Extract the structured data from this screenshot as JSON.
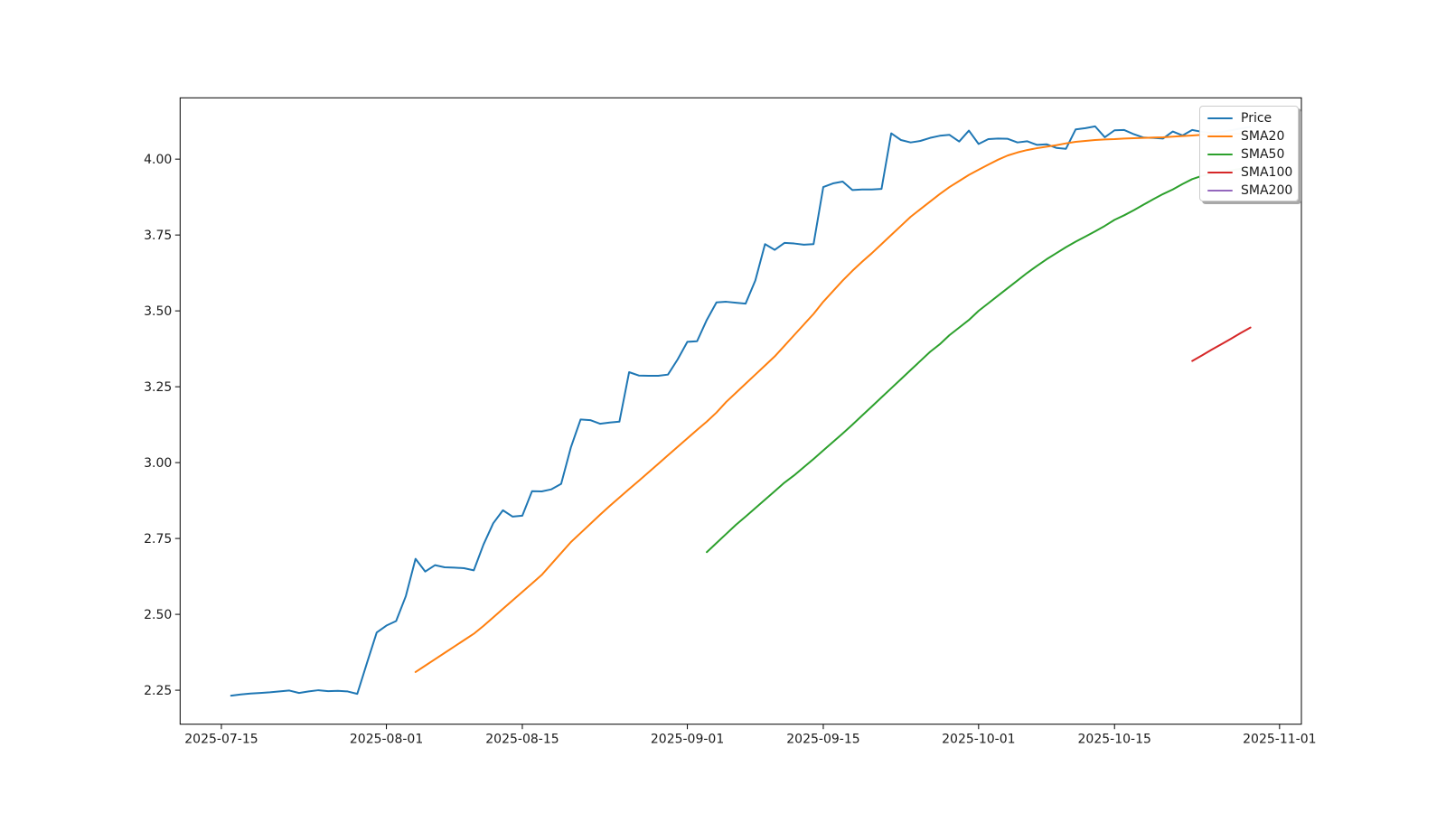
{
  "figure": {
    "background_color": "#ffffff"
  },
  "chart_data": {
    "type": "line",
    "title": "",
    "xlabel": "",
    "ylabel": "",
    "grid": false,
    "legend_position": "upper right",
    "start_date": "2025-07-16",
    "xlim_days_from_start": [
      -5.25,
      110.25
    ],
    "ylim": [
      2.138,
      4.202
    ],
    "x_tick_dates": [
      "2025-07-15",
      "2025-08-01",
      "2025-08-15",
      "2025-09-01",
      "2025-09-15",
      "2025-10-01",
      "2025-10-15",
      "2025-11-01"
    ],
    "y_ticks": [
      2.25,
      2.5,
      2.75,
      3.0,
      3.25,
      3.5,
      3.75,
      4.0
    ],
    "y_tick_labels": [
      "2.25",
      "2.50",
      "2.75",
      "3.00",
      "3.25",
      "3.50",
      "3.75",
      "4.00"
    ],
    "legend_entries": [
      {
        "label": "Price",
        "color": "#1f77b4"
      },
      {
        "label": "SMA20",
        "color": "#ff7f0e"
      },
      {
        "label": "SMA50",
        "color": "#2ca02c"
      },
      {
        "label": "SMA100",
        "color": "#d62728"
      },
      {
        "label": "SMA200",
        "color": "#9467bd"
      }
    ],
    "series": [
      {
        "name": "Price",
        "color": "#1f77b4",
        "start_day": 0,
        "values": [
          2.232,
          2.236,
          2.239,
          2.241,
          2.243,
          2.246,
          2.249,
          2.241,
          2.246,
          2.25,
          2.247,
          2.248,
          2.246,
          2.238,
          2.34,
          2.44,
          2.463,
          2.478,
          2.56,
          2.683,
          2.641,
          2.662,
          2.655,
          2.654,
          2.652,
          2.645,
          2.73,
          2.8,
          2.843,
          2.822,
          2.825,
          2.906,
          2.905,
          2.912,
          2.93,
          3.05,
          3.142,
          3.14,
          3.128,
          3.132,
          3.135,
          3.298,
          3.287,
          3.286,
          3.286,
          3.29,
          3.34,
          3.398,
          3.4,
          3.47,
          3.528,
          3.53,
          3.527,
          3.524,
          3.6,
          3.72,
          3.701,
          3.724,
          3.722,
          3.718,
          3.72,
          3.908,
          3.92,
          3.926,
          3.898,
          3.9,
          3.9,
          3.902,
          4.085,
          4.063,
          4.055,
          4.06,
          4.07,
          4.077,
          4.08,
          4.058,
          4.094,
          4.05,
          4.066,
          4.068,
          4.067,
          4.055,
          4.059,
          4.047,
          4.049,
          4.037,
          4.034,
          4.098,
          4.102,
          4.108,
          4.072,
          4.095,
          4.096,
          4.082,
          4.071,
          4.07,
          4.068,
          4.091,
          4.078,
          4.096,
          4.09,
          4.086,
          4.089,
          4.095,
          4.101,
          4.106
        ]
      },
      {
        "name": "SMA20",
        "color": "#ff7f0e",
        "start_day": 19,
        "values": [
          2.31,
          2.331,
          2.352,
          2.373,
          2.394,
          2.415,
          2.436,
          2.462,
          2.49,
          2.518,
          2.546,
          2.574,
          2.602,
          2.63,
          2.666,
          2.702,
          2.738,
          2.768,
          2.798,
          2.828,
          2.857,
          2.885,
          2.913,
          2.94,
          2.968,
          2.996,
          3.024,
          3.052,
          3.08,
          3.108,
          3.135,
          3.165,
          3.2,
          3.23,
          3.26,
          3.29,
          3.32,
          3.35,
          3.385,
          3.42,
          3.455,
          3.49,
          3.53,
          3.565,
          3.6,
          3.632,
          3.662,
          3.69,
          3.72,
          3.75,
          3.78,
          3.81,
          3.835,
          3.86,
          3.885,
          3.908,
          3.928,
          3.948,
          3.965,
          3.982,
          3.998,
          4.012,
          4.022,
          4.03,
          4.036,
          4.041,
          4.046,
          4.052,
          4.057,
          4.06,
          4.063,
          4.065,
          4.066,
          4.068,
          4.069,
          4.07,
          4.071,
          4.072,
          4.074,
          4.076,
          4.078,
          4.08,
          4.081,
          4.082,
          4.083,
          4.084,
          4.085
        ]
      },
      {
        "name": "SMA50",
        "color": "#2ca02c",
        "start_day": 49,
        "values": [
          2.705,
          2.735,
          2.765,
          2.795,
          2.822,
          2.85,
          2.878,
          2.906,
          2.934,
          2.958,
          2.985,
          3.012,
          3.04,
          3.068,
          3.096,
          3.125,
          3.155,
          3.185,
          3.215,
          3.245,
          3.275,
          3.305,
          3.335,
          3.365,
          3.39,
          3.42,
          3.445,
          3.47,
          3.5,
          3.525,
          3.55,
          3.575,
          3.6,
          3.625,
          3.648,
          3.67,
          3.69,
          3.71,
          3.728,
          3.745,
          3.762,
          3.78,
          3.8,
          3.815,
          3.832,
          3.85,
          3.868,
          3.885,
          3.9,
          3.918,
          3.934,
          3.945,
          3.952,
          3.958,
          3.963,
          3.968,
          3.972
        ]
      },
      {
        "name": "SMA100",
        "color": "#d62728",
        "start_day": 99,
        "values": [
          3.335,
          3.353,
          3.372,
          3.39,
          3.408,
          3.427,
          3.445
        ]
      },
      {
        "name": "SMA200",
        "color": "#9467bd",
        "start_day": null,
        "values": []
      }
    ]
  }
}
